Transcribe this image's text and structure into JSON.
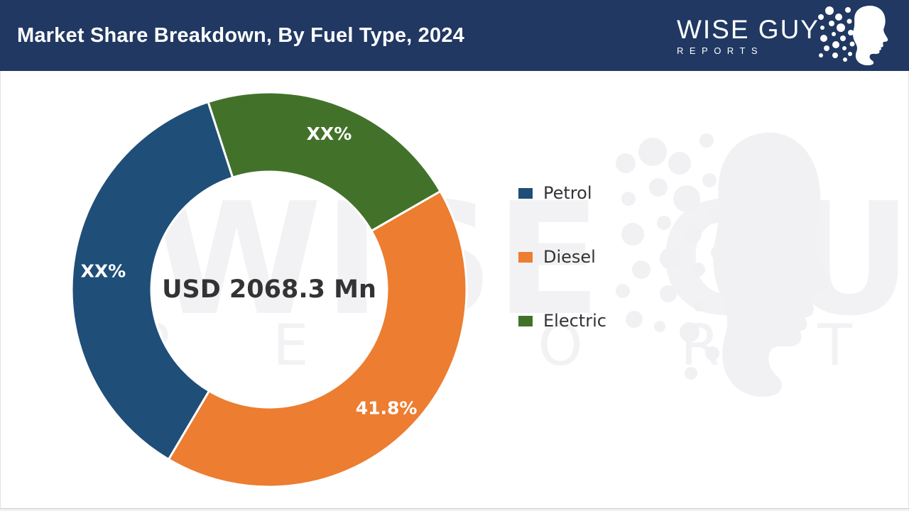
{
  "header": {
    "title": "Market Share Breakdown, By Fuel Type, 2024",
    "bg_color": "#203862",
    "logo": {
      "line1": "WISE GUY",
      "line2": "REPORTS"
    }
  },
  "watermark": {
    "line1": "WISE GUY",
    "line2": "R E P O R T S"
  },
  "chart_data": {
    "type": "pie",
    "subtype": "donut",
    "title": "Market Share Breakdown, By Fuel Type, 2024",
    "center_label": "USD 2068.3 Mn",
    "start_angle_deg": 108,
    "direction": "counterclockwise",
    "legend_position": "right",
    "slices": [
      {
        "name": "Petrol",
        "value": 36.5,
        "label": "XX%",
        "color": "#1F4E78"
      },
      {
        "name": "Diesel",
        "value": 41.8,
        "label": "41.8%",
        "color": "#EC7D31"
      },
      {
        "name": "Electric",
        "value": 21.7,
        "label": "XX%",
        "color": "#42722A"
      }
    ]
  },
  "colors": {
    "header_bg": "#203862",
    "center_text": "#333333",
    "legend_text": "#333333",
    "watermark": "#F2F2F4",
    "border": "#E2E2E2"
  }
}
